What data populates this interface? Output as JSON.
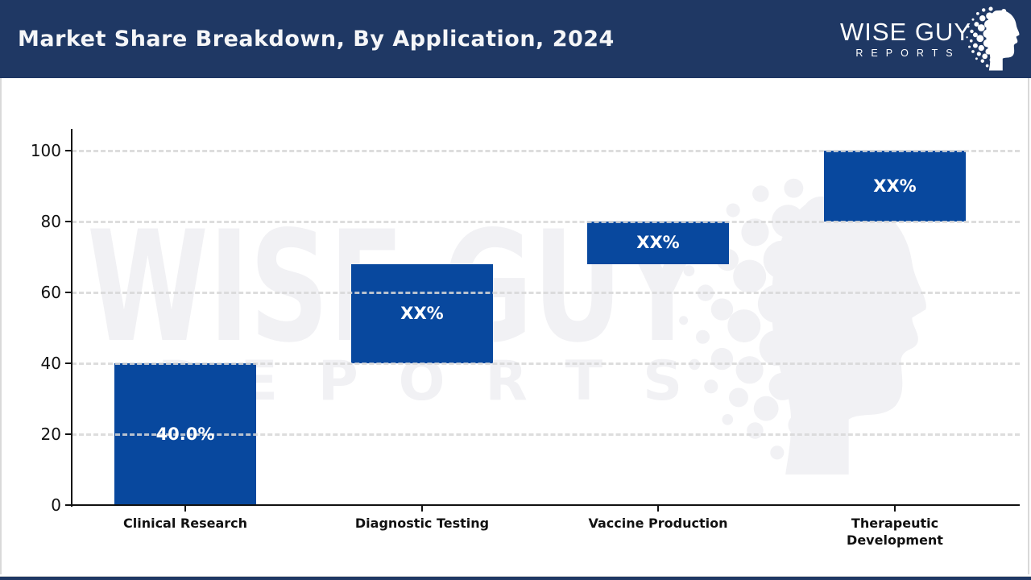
{
  "header": {
    "title": "Market Share Breakdown, By Application, 2024",
    "logo": {
      "line1": "WISE GUY",
      "line2": "REPORTS"
    }
  },
  "watermark": {
    "line1": "WISE GUY",
    "line2": "REPORTS"
  },
  "colors": {
    "header_bg": "#1f3864",
    "bar": "#08489e",
    "grid": "#d8d8d8",
    "watermark": "#f1f1f4",
    "axis": "#111111",
    "bar_label_text": "#ffffff",
    "title_text": "#f5f6f8"
  },
  "chart_data": {
    "type": "bar",
    "subtype": "waterfall",
    "title": "Market Share Breakdown, By Application, 2024",
    "categories": [
      "Clinical Research",
      "Diagnostic Testing",
      "Vaccine Production",
      "Therapeutic Development"
    ],
    "segments": [
      {
        "category": "Clinical Research",
        "tick_label": "Clinical Research",
        "start": 0,
        "end": 40,
        "value": 40,
        "label": "40.0%"
      },
      {
        "category": "Diagnostic Testing",
        "tick_label": "Diagnostic Testing",
        "start": 40,
        "end": 68,
        "value": 28,
        "label": "XX%"
      },
      {
        "category": "Vaccine Production",
        "tick_label": "Vaccine Production",
        "start": 68,
        "end": 80,
        "value": 12,
        "label": "XX%"
      },
      {
        "category": "Therapeutic Development",
        "tick_label": "Therapeutic\nDevelopment",
        "start": 80,
        "end": 100,
        "value": 20,
        "label": "XX%"
      }
    ],
    "ylim": [
      0,
      100
    ],
    "yticks": [
      0,
      20,
      40,
      60,
      80,
      100
    ],
    "xlabel": "",
    "ylabel": "",
    "grid": "horizontal-dashed",
    "legend": "none"
  }
}
